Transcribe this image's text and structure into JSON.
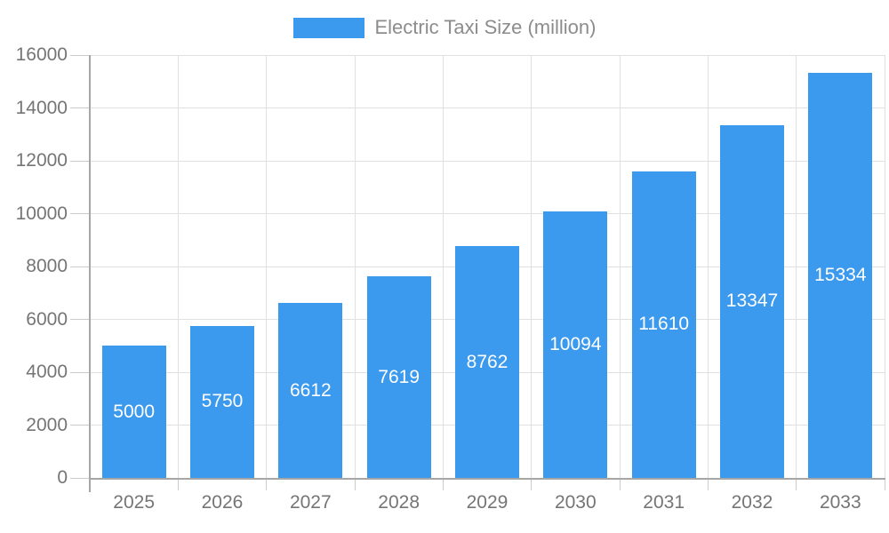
{
  "colors": {
    "bar": "#3b99ee",
    "bar_value_text": "#ffffff",
    "axis_text": "#757575",
    "legend_text": "#8c8c8c",
    "gridline": "#e0e0e0",
    "tick": "#cccccc",
    "axis_line": "#a6a6a6",
    "background": "#ffffff"
  },
  "chart_data": {
    "type": "bar",
    "title": "Electric Taxi Size (million)",
    "categories": [
      "2025",
      "2026",
      "2027",
      "2028",
      "2029",
      "2030",
      "2031",
      "2032",
      "2033"
    ],
    "values": [
      5000,
      5750,
      6612,
      7619,
      8762,
      10094,
      11610,
      13347,
      15334
    ],
    "xlabel": "",
    "ylabel": "",
    "ylim": [
      0,
      16000
    ],
    "ytick_step": 2000,
    "ytick_labels": [
      "0",
      "2000",
      "4000",
      "6000",
      "8000",
      "10000",
      "12000",
      "14000",
      "16000"
    ],
    "grid": true,
    "legend": {
      "position": "top-center",
      "entries": [
        "Electric Taxi Size (million)"
      ]
    },
    "value_labels": {
      "position": "inside-center",
      "color": "#ffffff"
    }
  }
}
